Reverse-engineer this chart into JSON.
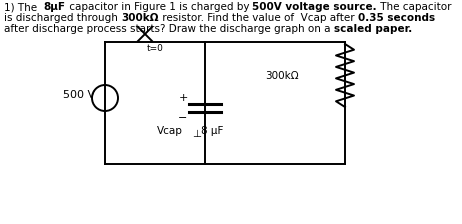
{
  "background_color": "#ffffff",
  "text_color": "#000000",
  "line_color": "#000000",
  "voltage_label": "500 V",
  "resistor_label": "300kΩ",
  "cap_label_vcap": "Vcap",
  "cap_label_value": "8 μF",
  "switch_label": "t=0",
  "plus_sign": "+",
  "minus_sign": "−",
  "font_size_body": 7.5,
  "font_size_circuit": 7.5,
  "line1_parts": [
    [
      "1) The  ",
      false
    ],
    [
      "8μF",
      true
    ],
    [
      " capacitor in Figure 1 is charged by ",
      false
    ],
    [
      "500V voltage source.",
      true
    ],
    [
      " The capacitor",
      false
    ]
  ],
  "line2_parts": [
    [
      "is discharged through ",
      false
    ],
    [
      "300kΩ",
      true
    ],
    [
      " resistor. Find the value of  Vcap after ",
      false
    ],
    [
      "0.35 seconds",
      true
    ]
  ],
  "line3_parts": [
    [
      "after discharge process starts? Draw the discharge graph on a ",
      false
    ],
    [
      "scaled paper.",
      true
    ]
  ]
}
